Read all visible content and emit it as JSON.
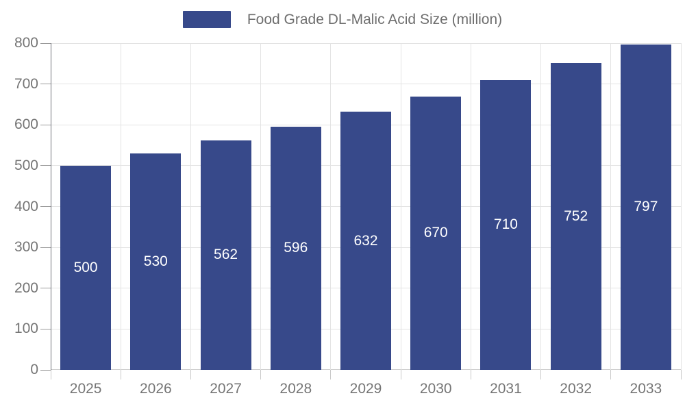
{
  "legend": {
    "label": "Food Grade DL-Malic Acid Size (million)"
  },
  "chart_data": {
    "type": "bar",
    "title": "",
    "series_name": "Food Grade DL-Malic Acid Size (million)",
    "categories": [
      "2025",
      "2026",
      "2027",
      "2028",
      "2029",
      "2030",
      "2031",
      "2032",
      "2033"
    ],
    "values": [
      500,
      530,
      562,
      596,
      632,
      670,
      710,
      752,
      797
    ],
    "xlabel": "",
    "ylabel": "",
    "ylim": [
      0,
      800
    ],
    "yticks": [
      0,
      100,
      200,
      300,
      400,
      500,
      600,
      700,
      800
    ],
    "grid": true,
    "legend_position": "top",
    "value_labels": "inside-center",
    "bar_color": "#37498a",
    "value_label_color": "#ffffff",
    "axis_label_color": "#757575",
    "gridline_color": "#e3e3e3"
  }
}
